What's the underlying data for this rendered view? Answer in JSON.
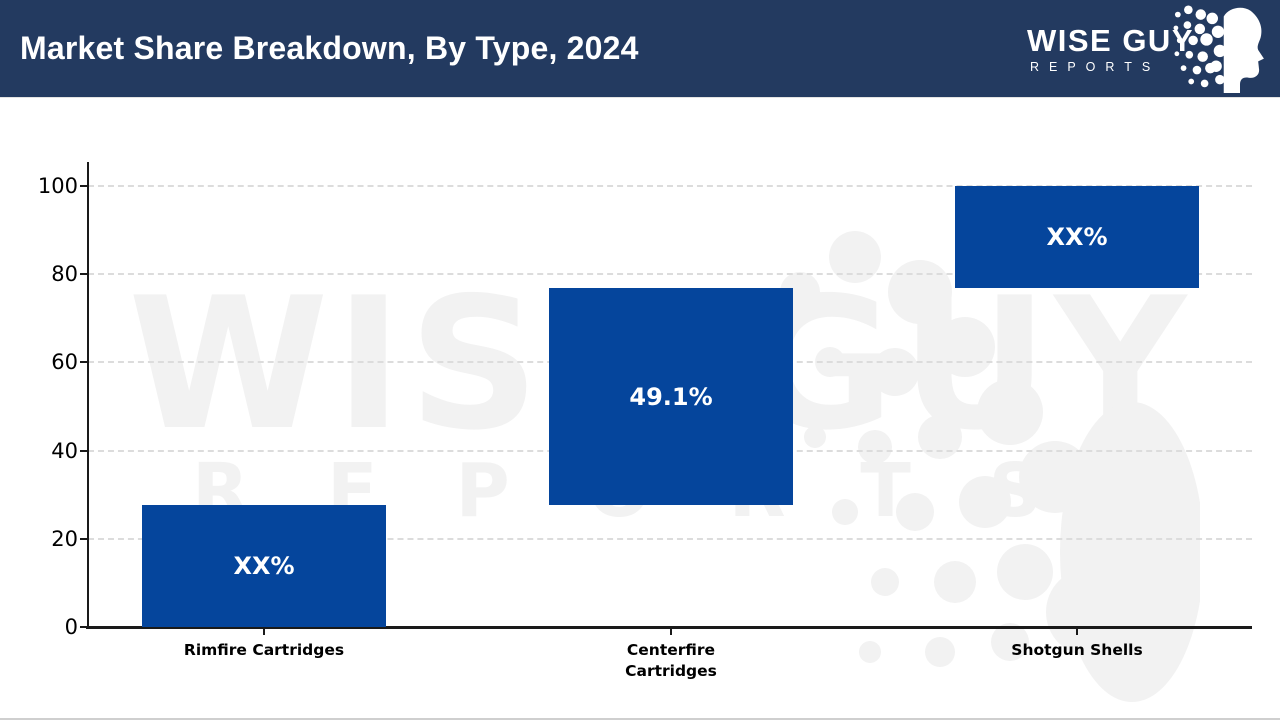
{
  "header": {
    "title": "Market Share Breakdown, By Type, 2024",
    "logo": {
      "line1": "WISE GUY",
      "line2": "REPORTS"
    }
  },
  "watermark": {
    "line1": "WISE GUY",
    "line2": "REPORTS"
  },
  "colors": {
    "header_bg": "#233A60",
    "bar_blue": "#05459C",
    "gridline": "#dcdcdc",
    "axis": "#1a1a1a",
    "watermark": "#f2f2f2",
    "bar_label": "#ffffff"
  },
  "chart_data": {
    "type": "bar",
    "variant": "floating-segment bars (stacked market-share breakdown)",
    "title": "Market Share Breakdown, By Type, 2024",
    "categories": [
      "Rimfire Cartridges",
      "Centerfire\nCartridges",
      "Shotgun Shells"
    ],
    "series": [
      {
        "name": "Market share (%)",
        "segments": [
          {
            "category": "Rimfire Cartridges",
            "start": 0,
            "end": 27.7,
            "value_label": "XX%"
          },
          {
            "category": "Centerfire Cartridges",
            "start": 27.7,
            "end": 76.8,
            "value_label": "49.1%"
          },
          {
            "category": "Shotgun Shells",
            "start": 76.8,
            "end": 100,
            "value_label": "XX%"
          }
        ]
      }
    ],
    "yticks": [
      0,
      20,
      40,
      60,
      80,
      100
    ],
    "ylim": [
      0,
      105.5
    ],
    "xlabel": "",
    "ylabel": "",
    "legend": "none",
    "grid": {
      "horizontal": true,
      "style": "dashed"
    }
  }
}
